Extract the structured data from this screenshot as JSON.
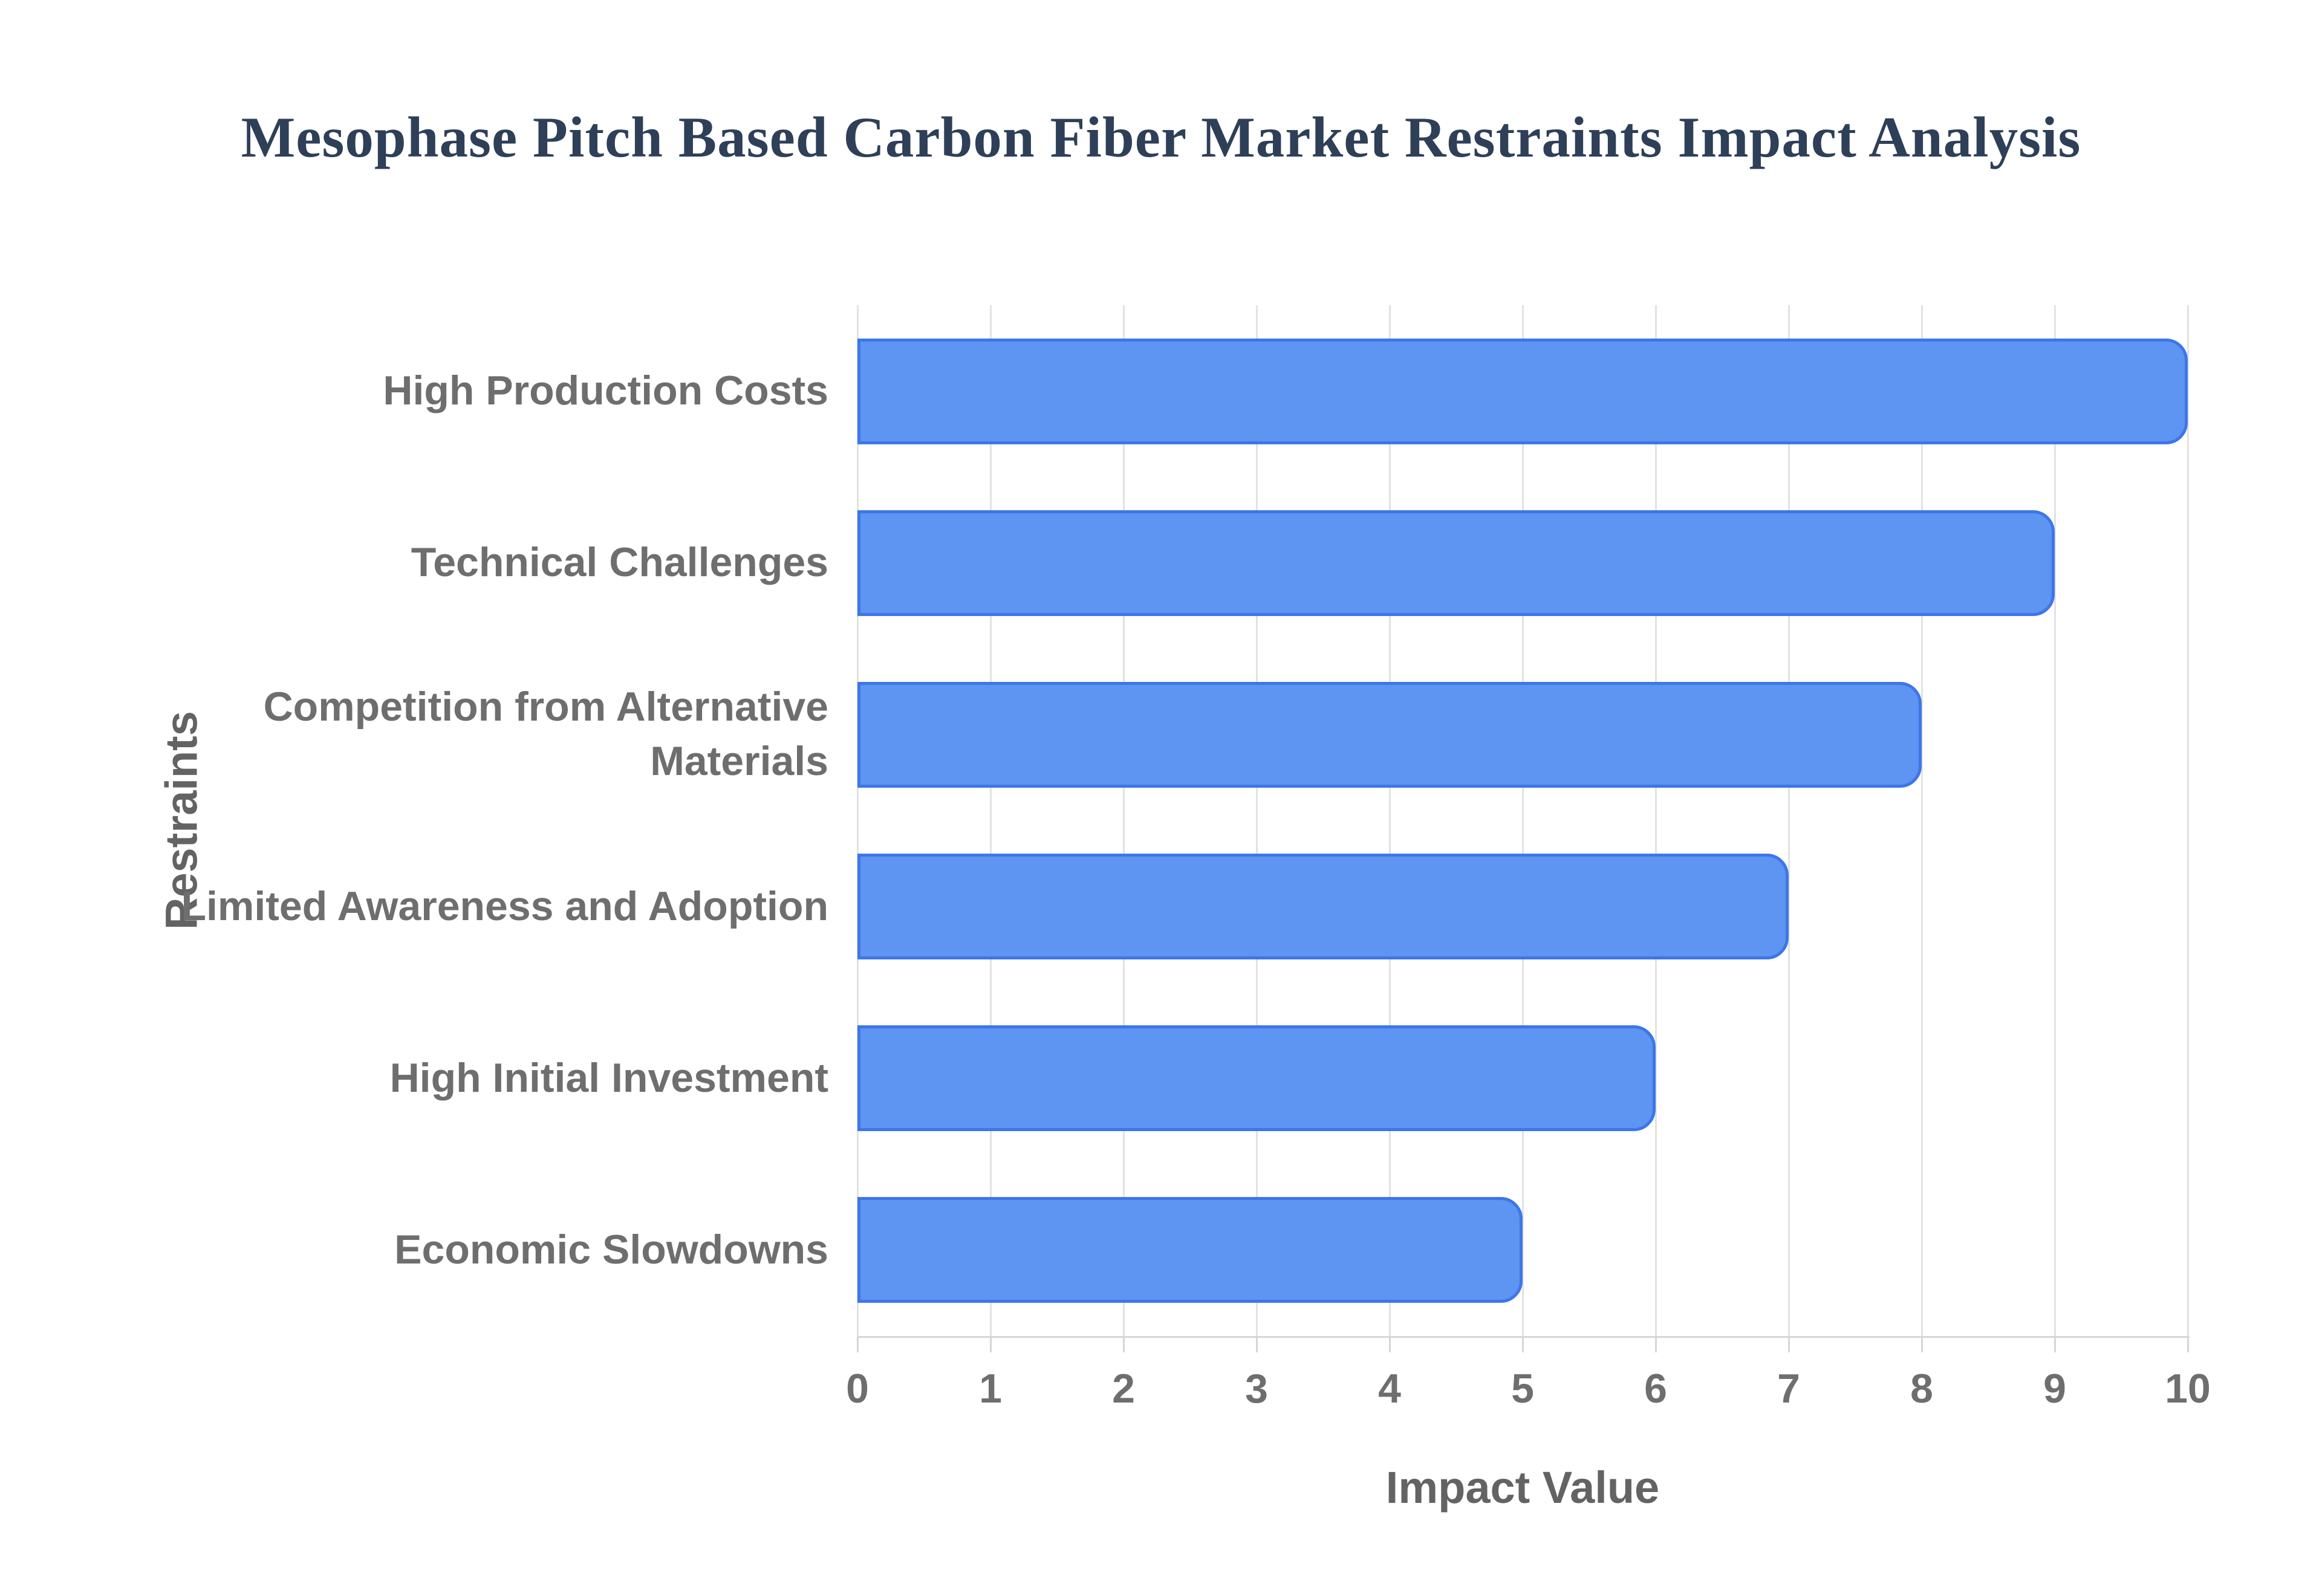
{
  "chart_data": {
    "type": "bar",
    "orientation": "horizontal",
    "title": "Mesophase Pitch Based Carbon Fiber Market Restraints Impact Analysis",
    "categories": [
      "High Production Costs",
      "Technical Challenges",
      "Competition from Alternative Materials",
      "Limited Awareness and Adoption",
      "High Initial Investment",
      "Economic Slowdowns"
    ],
    "values": [
      10,
      9,
      8,
      7,
      6,
      5
    ],
    "xlabel": "Impact Value",
    "ylabel": "Restraints",
    "xlim": [
      0,
      10
    ],
    "x_ticks": [
      "0",
      "1",
      "2",
      "3",
      "4",
      "5",
      "6",
      "7",
      "8",
      "9",
      "10"
    ],
    "grid": true,
    "legend": false,
    "colors": {
      "bar_fill": "#5e94f2",
      "bar_border": "#3d76e8",
      "gridline": "#e2e2e2",
      "axis_line": "#d6d6d6",
      "tick_label": "#6e6e6e",
      "category_label": "#6e6e6e",
      "axis_title": "#636363",
      "title": "#2e3f58"
    }
  }
}
